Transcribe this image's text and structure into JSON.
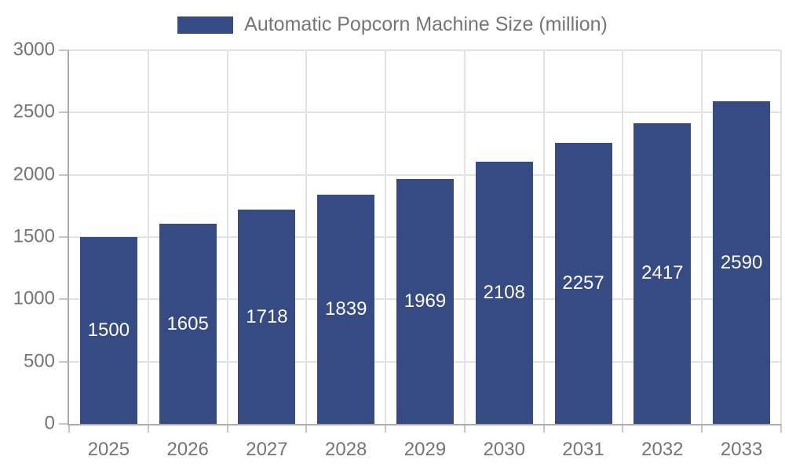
{
  "chart": {
    "legend": {
      "label": "Automatic Popcorn Machine Size (million)"
    }
  },
  "chart_data": {
    "type": "bar",
    "title": "Automatic Popcorn Machine Size (million)",
    "series_name": "Automatic Popcorn Machine Size (million)",
    "categories": [
      "2025",
      "2026",
      "2027",
      "2028",
      "2029",
      "2030",
      "2031",
      "2032",
      "2033"
    ],
    "values": [
      1500,
      1605,
      1718,
      1839,
      1969,
      2108,
      2257,
      2417,
      2590
    ],
    "xlabel": "",
    "ylabel": "",
    "ylim": [
      0,
      3000
    ],
    "yticks": [
      0,
      500,
      1000,
      1500,
      2000,
      2500,
      3000
    ],
    "grid": true,
    "legend_position": "top",
    "bar_color": "#364A84",
    "bar_label_color": "#FFFFFF",
    "axis_label_color": "#757575",
    "gridline_color": "#E2E2E2",
    "axis_line_color": "#ABABAB",
    "tick_color": "#C6C6C6",
    "background_color": "#FFFFFF"
  }
}
